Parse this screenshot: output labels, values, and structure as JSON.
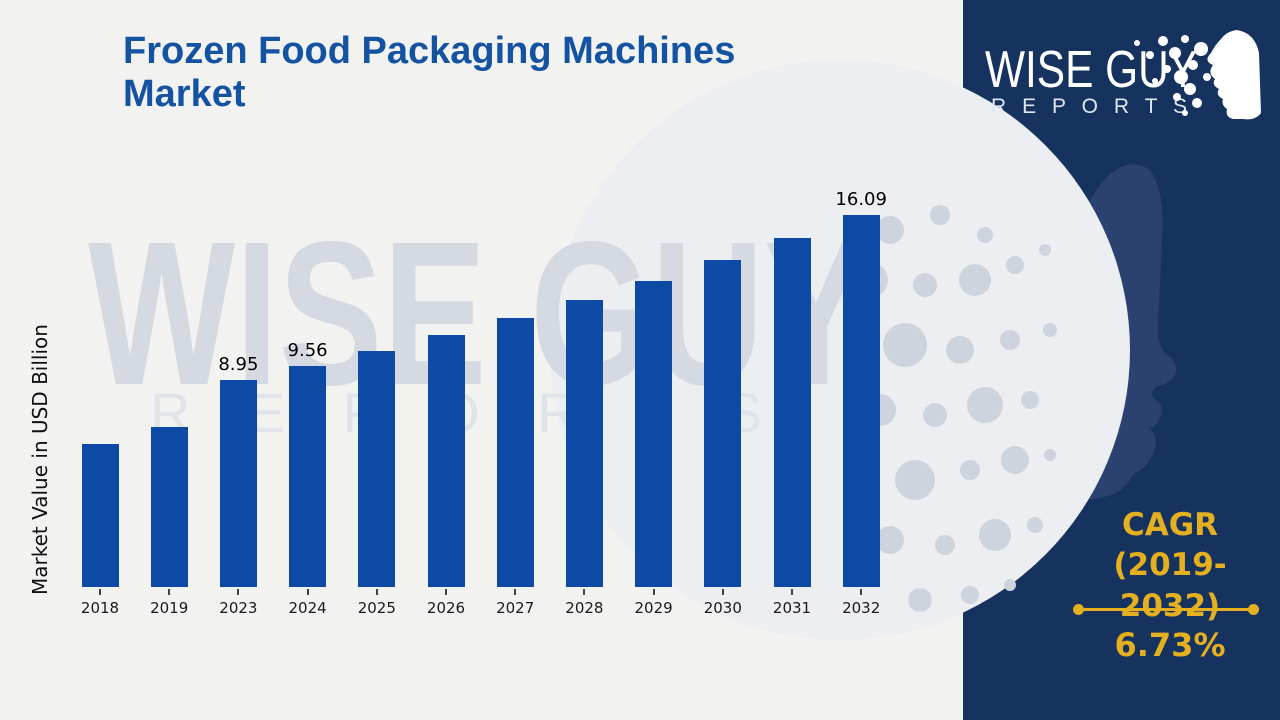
{
  "header": {
    "title_line1": "Frozen Food Packaging Machines",
    "title_line2": "Market"
  },
  "brand_panel": {
    "logo": {
      "line1": "WISE GUY",
      "line2": "R E P O R T S"
    },
    "cagr_line1": "CAGR",
    "cagr_line2": "(2019-2032)",
    "cagr_value": "6.73%"
  },
  "watermark": {
    "line1": "WISE GUY",
    "line2": "R E P O R T S"
  },
  "chart_data": {
    "type": "bar",
    "title": "Frozen Food Packaging Machines Market",
    "ylabel": "Market Value in USD Billion",
    "xlabel": "",
    "categories": [
      "2018",
      "2019",
      "2023",
      "2024",
      "2025",
      "2026",
      "2027",
      "2028",
      "2029",
      "2030",
      "2031",
      "2032"
    ],
    "values": [
      6.2,
      6.9,
      8.95,
      9.56,
      10.2,
      10.88,
      11.61,
      12.39,
      13.23,
      14.12,
      15.07,
      16.09
    ],
    "data_labels": {
      "2023": "8.95",
      "2024": "9.56",
      "2032": "16.09"
    },
    "ylim": [
      0,
      18
    ],
    "grid": false,
    "legend": false,
    "bar_color": "#0c4aa6"
  },
  "colors": {
    "background": "#f2f2f0",
    "title_blue": "#1453a2",
    "bar_blue": "#0c4aa6",
    "panel_navy": "#16325f",
    "gold": "#e4b01f",
    "watermark_gray": "#d5dae2"
  }
}
